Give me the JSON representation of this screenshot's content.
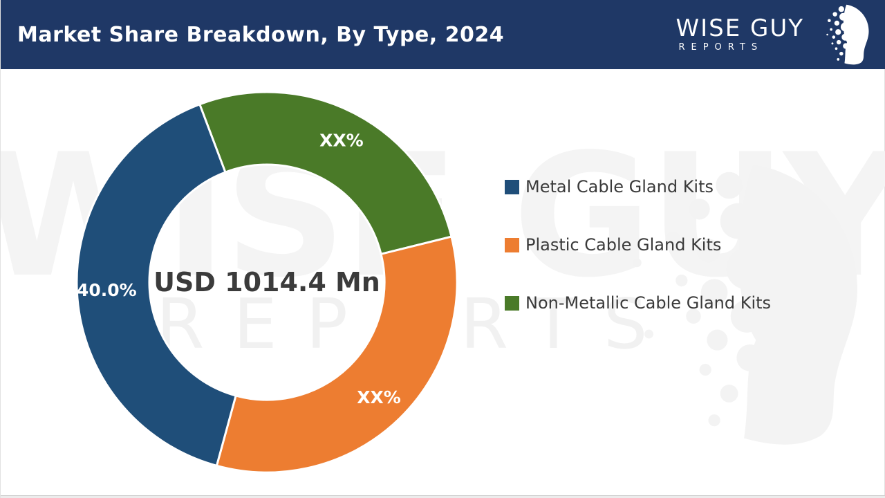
{
  "header": {
    "title": "Market Share Breakdown, By Type, 2024"
  },
  "brand": {
    "name_top": "WISE GUY",
    "name_bottom": "REPORTS"
  },
  "watermark": {
    "line1": "WISE GUY",
    "line2": "REPORTS"
  },
  "chart_data": {
    "type": "pie",
    "subtype": "donut",
    "title": "Market Share Breakdown, By Type, 2024",
    "center_label": "USD 1014.4 Mn",
    "legend_position": "right",
    "start_angle_deg": 110.7,
    "slices": [
      {
        "name": "Metal Cable Gland Kits",
        "value": 40.0,
        "label": "40.0%",
        "color": "#1f4e79"
      },
      {
        "name": "Plastic Cable Gland Kits",
        "value": 33.1,
        "label": "XX%",
        "color": "#ed7d31"
      },
      {
        "name": "Non-Metallic Cable Gland Kits",
        "value": 26.9,
        "label": "XX%",
        "color": "#4a7a28"
      }
    ]
  }
}
